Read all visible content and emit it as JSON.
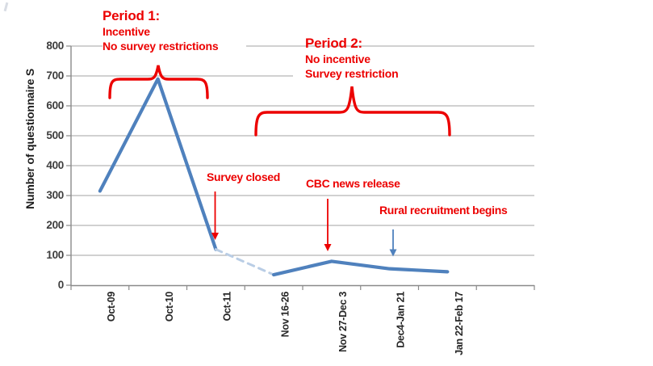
{
  "chart_data": {
    "type": "line",
    "title": "",
    "ylabel": "Number of questionnaire S",
    "xlabel": "",
    "categories": [
      "Oct-09",
      "Oct-10",
      "Oct-11",
      "Nov 16-26",
      "Nov 27-Dec 3",
      "Dec4-Jan 21",
      "Jan 22-Feb 17"
    ],
    "values": [
      315,
      690,
      120,
      35,
      80,
      55,
      45
    ],
    "series": [
      {
        "name": "Number of questionnaires",
        "segments": [
          {
            "style": "solid",
            "categories": [
              "Oct-09",
              "Oct-10",
              "Oct-11"
            ],
            "values": [
              315,
              690,
              120
            ]
          },
          {
            "style": "dashed",
            "categories": [
              "Oct-11",
              "Nov 16-26"
            ],
            "values": [
              120,
              35
            ]
          },
          {
            "style": "solid",
            "categories": [
              "Nov 16-26",
              "Nov 27-Dec 3",
              "Dec4-Jan 21",
              "Jan 22-Feb 17"
            ],
            "values": [
              35,
              80,
              55,
              45
            ]
          }
        ]
      }
    ],
    "ylim": [
      0,
      800
    ],
    "yticks": [
      0,
      100,
      200,
      300,
      400,
      500,
      600,
      700,
      800
    ],
    "grid": "horizontal",
    "legend": "none"
  },
  "annotations": {
    "period1": {
      "title": "Period 1:",
      "lines": [
        "Incentive",
        "No survey restrictions"
      ]
    },
    "period2": {
      "title": "Period 2:",
      "lines": [
        "No incentive",
        "Survey restriction"
      ]
    },
    "events": [
      {
        "label": "Survey closed",
        "arrow_color": "red",
        "points_to": "Oct-11"
      },
      {
        "label": "CBC news release",
        "arrow_color": "red",
        "points_to": "Nov 27-Dec 3"
      },
      {
        "label": "Rural recruitment begins",
        "arrow_color": "blue",
        "points_to": "Dec4-Jan 21"
      }
    ]
  },
  "colors": {
    "line_blue": "#4F81BD",
    "dashed_blue": "#B9CDE5",
    "annotation_red": "#EC0000",
    "grid_gray": "#A3A3A3",
    "axis_gray": "#8A8A8A",
    "tick_label_dark": "#3D3D3D"
  }
}
